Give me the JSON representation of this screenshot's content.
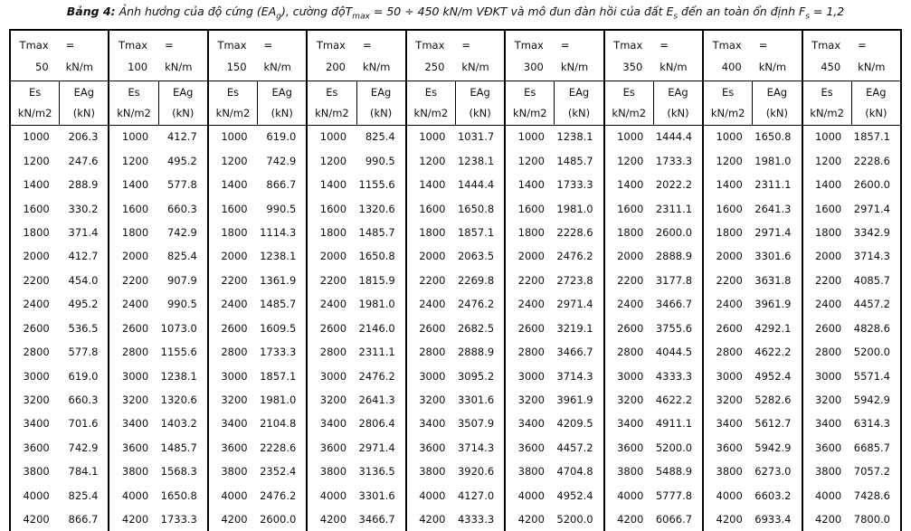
{
  "title": {
    "label": "Bảng 4:",
    "part1": " Ảnh hưởng của độ cứng (EA",
    "sub1": "g",
    "part2": "), cường độT",
    "sub2": "max",
    "part3": " = 50 ÷ 450 kN/m VĐKT và mô đun đàn hồi của đất E",
    "sub3": "s",
    "part4": " đến an toàn ổn định F",
    "sub4": "s",
    "part5": " = 1,2"
  },
  "table": {
    "group_header": {
      "label": "Tmax",
      "eq": "=",
      "unit": "kN/m"
    },
    "subheader": {
      "es1": "Es",
      "es2": "kN/m2",
      "eag1": "EAg",
      "eag2": "(kN)"
    },
    "es_values": [
      "1000",
      "1200",
      "1400",
      "1600",
      "1800",
      "2000",
      "2200",
      "2400",
      "2600",
      "2800",
      "3000",
      "3200",
      "3400",
      "3600",
      "3800",
      "4000",
      "4200"
    ],
    "groups": [
      {
        "tmax": "50",
        "eag": [
          "206.3",
          "247.6",
          "288.9",
          "330.2",
          "371.4",
          "412.7",
          "454.0",
          "495.2",
          "536.5",
          "577.8",
          "619.0",
          "660.3",
          "701.6",
          "742.9",
          "784.1",
          "825.4",
          "866.7"
        ]
      },
      {
        "tmax": "100",
        "eag": [
          "412.7",
          "495.2",
          "577.8",
          "660.3",
          "742.9",
          "825.4",
          "907.9",
          "990.5",
          "1073.0",
          "1155.6",
          "1238.1",
          "1320.6",
          "1403.2",
          "1485.7",
          "1568.3",
          "1650.8",
          "1733.3"
        ]
      },
      {
        "tmax": "150",
        "eag": [
          "619.0",
          "742.9",
          "866.7",
          "990.5",
          "1114.3",
          "1238.1",
          "1361.9",
          "1485.7",
          "1609.5",
          "1733.3",
          "1857.1",
          "1981.0",
          "2104.8",
          "2228.6",
          "2352.4",
          "2476.2",
          "2600.0"
        ]
      },
      {
        "tmax": "200",
        "eag": [
          "825.4",
          "990.5",
          "1155.6",
          "1320.6",
          "1485.7",
          "1650.8",
          "1815.9",
          "1981.0",
          "2146.0",
          "2311.1",
          "2476.2",
          "2641.3",
          "2806.4",
          "2971.4",
          "3136.5",
          "3301.6",
          "3466.7"
        ]
      },
      {
        "tmax": "250",
        "eag": [
          "1031.7",
          "1238.1",
          "1444.4",
          "1650.8",
          "1857.1",
          "2063.5",
          "2269.8",
          "2476.2",
          "2682.5",
          "2888.9",
          "3095.2",
          "3301.6",
          "3507.9",
          "3714.3",
          "3920.6",
          "4127.0",
          "4333.3"
        ]
      },
      {
        "tmax": "300",
        "eag": [
          "1238.1",
          "1485.7",
          "1733.3",
          "1981.0",
          "2228.6",
          "2476.2",
          "2723.8",
          "2971.4",
          "3219.1",
          "3466.7",
          "3714.3",
          "3961.9",
          "4209.5",
          "4457.2",
          "4704.8",
          "4952.4",
          "5200.0"
        ]
      },
      {
        "tmax": "350",
        "eag": [
          "1444.4",
          "1733.3",
          "2022.2",
          "2311.1",
          "2600.0",
          "2888.9",
          "3177.8",
          "3466.7",
          "3755.6",
          "4044.5",
          "4333.3",
          "4622.2",
          "4911.1",
          "5200.0",
          "5488.9",
          "5777.8",
          "6066.7"
        ]
      },
      {
        "tmax": "400",
        "eag": [
          "1650.8",
          "1981.0",
          "2311.1",
          "2641.3",
          "2971.4",
          "3301.6",
          "3631.8",
          "3961.9",
          "4292.1",
          "4622.2",
          "4952.4",
          "5282.6",
          "5612.7",
          "5942.9",
          "6273.0",
          "6603.2",
          "6933.4"
        ]
      },
      {
        "tmax": "450",
        "eag": [
          "1857.1",
          "2228.6",
          "2600.0",
          "2971.4",
          "3342.9",
          "3714.3",
          "4085.7",
          "4457.2",
          "4828.6",
          "5200.0",
          "5571.4",
          "5942.9",
          "6314.3",
          "6685.7",
          "7057.2",
          "7428.6",
          "7800.0"
        ]
      }
    ]
  }
}
